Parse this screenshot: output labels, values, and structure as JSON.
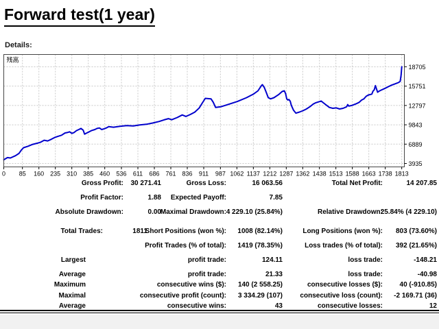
{
  "page": {
    "title": "Forward test(1 year)",
    "details_label": "Details:"
  },
  "chart_data": {
    "type": "line",
    "legend_label": "残高",
    "series": [
      {
        "name": "残高",
        "points": [
          [
            0,
            4500
          ],
          [
            17,
            4840
          ],
          [
            30,
            4770
          ],
          [
            53,
            5115
          ],
          [
            69,
            5470
          ],
          [
            80,
            5990
          ],
          [
            90,
            6340
          ],
          [
            111,
            6580
          ],
          [
            132,
            6860
          ],
          [
            153,
            7035
          ],
          [
            169,
            7200
          ],
          [
            184,
            7485
          ],
          [
            200,
            7380
          ],
          [
            216,
            7620
          ],
          [
            232,
            7900
          ],
          [
            247,
            8080
          ],
          [
            263,
            8250
          ],
          [
            279,
            8600
          ],
          [
            289,
            8660
          ],
          [
            300,
            8770
          ],
          [
            310,
            8530
          ],
          [
            320,
            8660
          ],
          [
            331,
            8950
          ],
          [
            342,
            9120
          ],
          [
            352,
            9290
          ],
          [
            362,
            9020
          ],
          [
            368,
            8420
          ],
          [
            378,
            8600
          ],
          [
            389,
            8770
          ],
          [
            399,
            8950
          ],
          [
            415,
            9120
          ],
          [
            425,
            9290
          ],
          [
            436,
            9360
          ],
          [
            446,
            9120
          ],
          [
            457,
            9230
          ],
          [
            467,
            9360
          ],
          [
            478,
            9560
          ],
          [
            500,
            9480
          ],
          [
            530,
            9620
          ],
          [
            560,
            9720
          ],
          [
            590,
            9660
          ],
          [
            620,
            9820
          ],
          [
            650,
            9930
          ],
          [
            680,
            10120
          ],
          [
            708,
            10350
          ],
          [
            730,
            10600
          ],
          [
            750,
            10780
          ],
          [
            765,
            10620
          ],
          [
            790,
            10950
          ],
          [
            813,
            11350
          ],
          [
            830,
            11120
          ],
          [
            850,
            11420
          ],
          [
            870,
            11780
          ],
          [
            890,
            12400
          ],
          [
            905,
            13200
          ],
          [
            918,
            13880
          ],
          [
            944,
            13810
          ],
          [
            954,
            13300
          ],
          [
            965,
            12500
          ],
          [
            991,
            12620
          ],
          [
            1022,
            12950
          ],
          [
            1064,
            13400
          ],
          [
            1106,
            13990
          ],
          [
            1137,
            14520
          ],
          [
            1158,
            15040
          ],
          [
            1174,
            15840
          ],
          [
            1178,
            15975
          ],
          [
            1187,
            15550
          ],
          [
            1195,
            14870
          ],
          [
            1205,
            13990
          ],
          [
            1216,
            13810
          ],
          [
            1231,
            13990
          ],
          [
            1252,
            14450
          ],
          [
            1268,
            14930
          ],
          [
            1278,
            15040
          ],
          [
            1284,
            14590
          ],
          [
            1289,
            13810
          ],
          [
            1294,
            13630
          ],
          [
            1299,
            13700
          ],
          [
            1305,
            13450
          ],
          [
            1310,
            12830
          ],
          [
            1320,
            12070
          ],
          [
            1331,
            11620
          ],
          [
            1347,
            11790
          ],
          [
            1363,
            12000
          ],
          [
            1378,
            12250
          ],
          [
            1394,
            12600
          ],
          [
            1410,
            13015
          ],
          [
            1420,
            13190
          ],
          [
            1446,
            13480
          ],
          [
            1460,
            13100
          ],
          [
            1483,
            12500
          ],
          [
            1499,
            12360
          ],
          [
            1515,
            12430
          ],
          [
            1530,
            12260
          ],
          [
            1546,
            12360
          ],
          [
            1562,
            12600
          ],
          [
            1567,
            12930
          ],
          [
            1572,
            12700
          ],
          [
            1588,
            12830
          ],
          [
            1604,
            13040
          ],
          [
            1619,
            13280
          ],
          [
            1630,
            13620
          ],
          [
            1640,
            13790
          ],
          [
            1651,
            14200
          ],
          [
            1661,
            14400
          ],
          [
            1677,
            14530
          ],
          [
            1682,
            14970
          ],
          [
            1688,
            15215
          ],
          [
            1693,
            15830
          ],
          [
            1698,
            15320
          ],
          [
            1703,
            14810
          ],
          [
            1709,
            14970
          ],
          [
            1719,
            15140
          ],
          [
            1735,
            15380
          ],
          [
            1751,
            15650
          ],
          [
            1766,
            15890
          ],
          [
            1782,
            16090
          ],
          [
            1793,
            16230
          ],
          [
            1800,
            16330
          ],
          [
            1806,
            16480
          ],
          [
            1810,
            17400
          ],
          [
            1813,
            18705
          ]
        ]
      }
    ],
    "x_ticks": [
      0,
      85,
      160,
      235,
      310,
      385,
      460,
      536,
      611,
      686,
      761,
      836,
      911,
      987,
      1062,
      1137,
      1212,
      1287,
      1362,
      1438,
      1513,
      1588,
      1663,
      1738,
      1813
    ],
    "y_ticks": [
      3935,
      6889,
      9843,
      12797,
      15751,
      18705
    ],
    "xlim": [
      0,
      1825
    ],
    "ylim": [
      3413,
      20584
    ],
    "grid": true,
    "line_color": "#0000CC",
    "grid_color": "#c8c8c8",
    "border_color": "#444444",
    "tick_label_color": "#000000",
    "legend_position": "top-left-inside"
  },
  "stats": {
    "sections": [
      {
        "rows": [
          [
            "Gross Profit:",
            "30 271.41",
            "Gross Loss:",
            "16 063.56",
            "Total Net Profit:",
            "14 207.85"
          ],
          [
            "Profit Factor:",
            "1.88",
            "Expected Payoff:",
            "7.85",
            "",
            ""
          ],
          [
            "Absolute Drawdown:",
            "0.00",
            "Maximal Drawdown:",
            "4 229.10 (25.84%)",
            "Relative Drawdown:",
            "25.84% (4 229.10)"
          ]
        ]
      },
      {
        "rows": [
          [
            "Total Trades:",
            "1811",
            "Short Positions (won %):",
            "1008 (82.14%)",
            "Long Positions (won %):",
            "803 (73.60%)"
          ],
          [
            "",
            "",
            "Profit Trades (% of total):",
            "1419 (78.35%)",
            "Loss trades (% of total):",
            "392 (21.65%)"
          ],
          [
            "Largest",
            "",
            "profit trade:",
            "124.11",
            "loss trade:",
            "-148.21"
          ],
          [
            "Average",
            "",
            "profit trade:",
            "21.33",
            "loss trade:",
            "-40.98"
          ],
          [
            "Maximum",
            "",
            "consecutive wins ($):",
            "140 (2 558.25)",
            "consecutive losses ($):",
            "40 (-910.85)"
          ],
          [
            "Maximal",
            "",
            "consecutive profit (count):",
            "3 334.29 (107)",
            "consecutive loss (count):",
            "-2 169.71 (36)"
          ],
          [
            "Average",
            "",
            "consecutive wins:",
            "43",
            "consecutive losses:",
            "12"
          ]
        ]
      }
    ]
  }
}
